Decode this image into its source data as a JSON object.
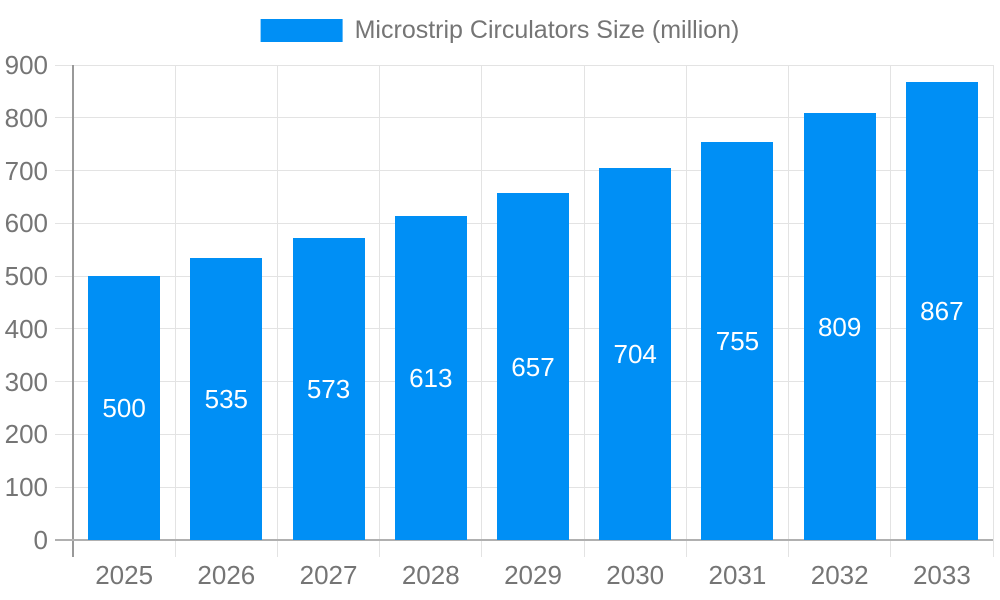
{
  "chart_data": {
    "type": "bar",
    "title": "",
    "legend": "Microstrip Circulators Size (million)",
    "legend_position": "top-center",
    "categories": [
      "2025",
      "2026",
      "2027",
      "2028",
      "2029",
      "2030",
      "2031",
      "2032",
      "2033"
    ],
    "values": [
      500,
      535,
      573,
      613,
      657,
      704,
      755,
      809,
      867
    ],
    "xlabel": "",
    "ylabel": "",
    "ylim": [
      0,
      900
    ],
    "ytick_step": 100,
    "ytick_labels": [
      "0",
      "100",
      "200",
      "300",
      "400",
      "500",
      "600",
      "700",
      "800",
      "900"
    ],
    "grid": "on",
    "bar_labels_visible": true,
    "colors": {
      "bar": "#008FF5",
      "bar_label": "#ffffff",
      "axis_text": "#757575",
      "gridline": "#e3e3e3",
      "y_axis_line": "#999999",
      "x_axis_line": "#b0b0b0",
      "background": "#ffffff"
    }
  }
}
